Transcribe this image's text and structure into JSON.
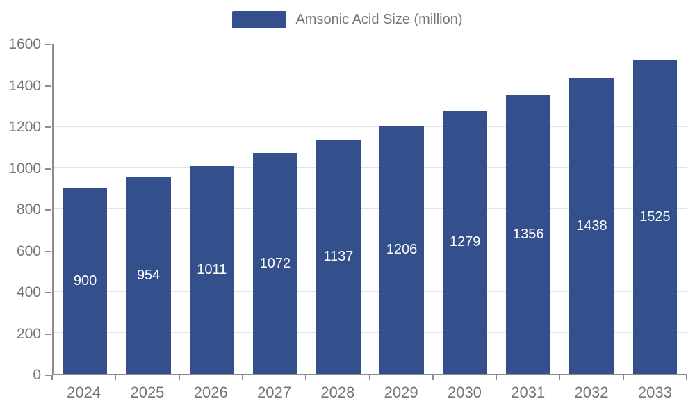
{
  "chart_data": {
    "type": "bar",
    "title": "Amsonic Acid Size (million)",
    "legend_position": "top",
    "categories": [
      "2024",
      "2025",
      "2026",
      "2027",
      "2028",
      "2029",
      "2030",
      "2031",
      "2032",
      "2033"
    ],
    "series": [
      {
        "name": "Amsonic Acid Size (million)",
        "values": [
          900,
          954,
          1011,
          1072,
          1137,
          1206,
          1279,
          1356,
          1438,
          1525
        ]
      }
    ],
    "xlabel": "",
    "ylabel": "",
    "ylim": [
      0,
      1600
    ],
    "ytick_step": 200,
    "grid": true,
    "bar_color": "#34508C",
    "value_label_color": "#ffffff",
    "axis_label_color": "#757575",
    "grid_color": "#e3e3e3",
    "axis_line_color": "#8c8c8c"
  }
}
